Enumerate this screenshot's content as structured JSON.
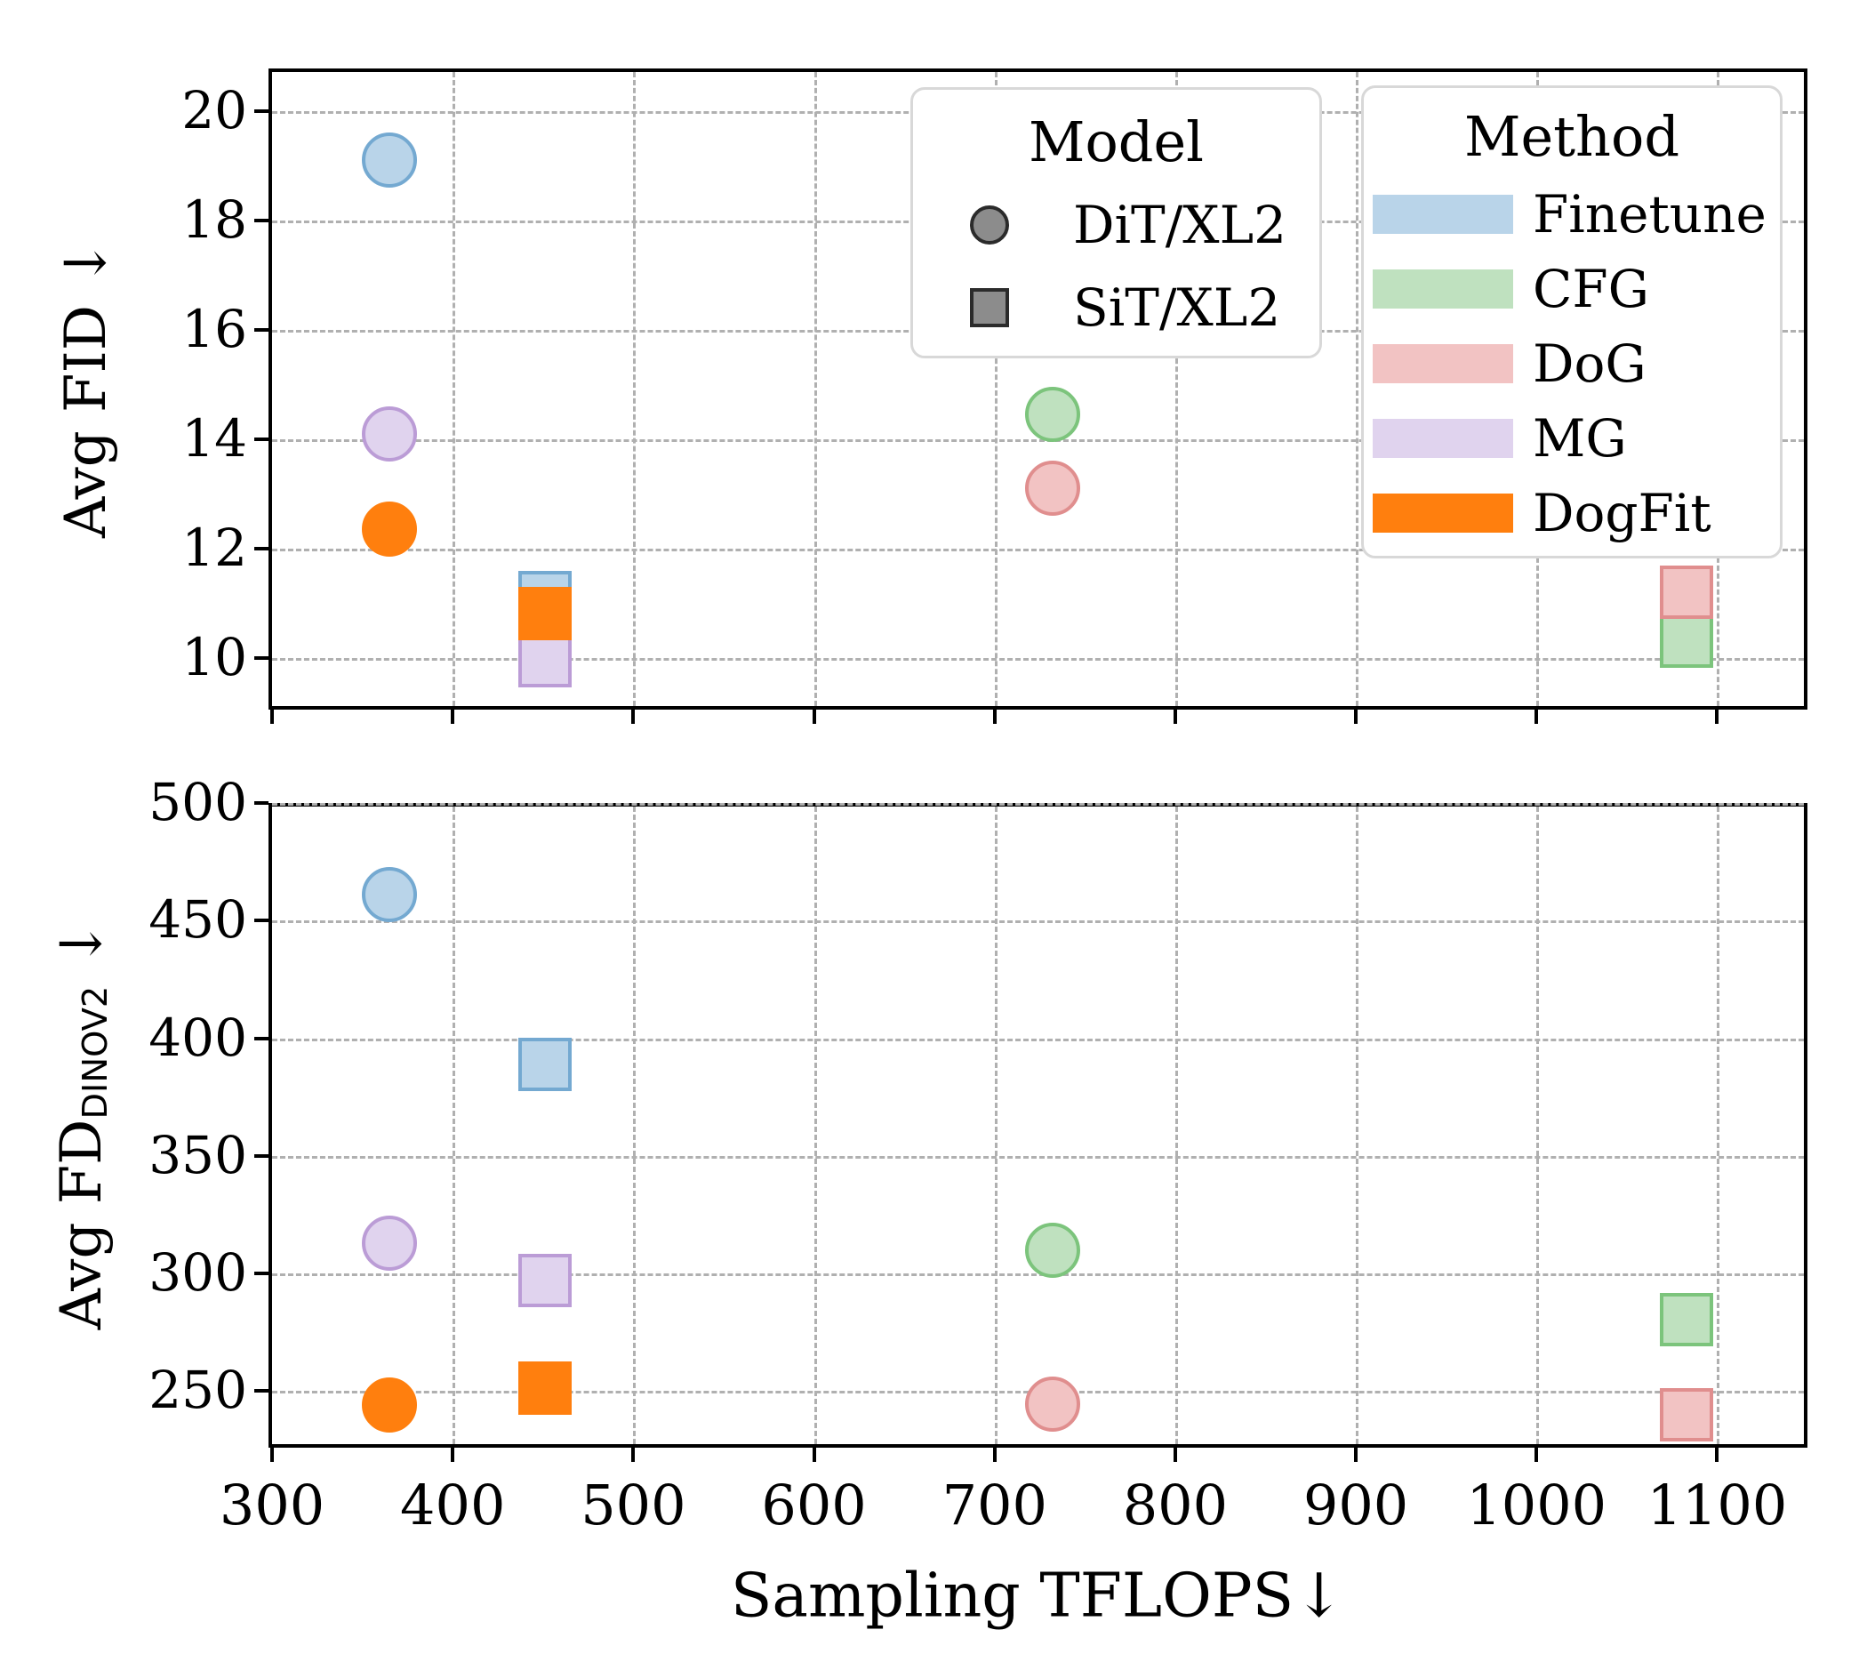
{
  "figure": {
    "background": "#ffffff"
  },
  "colors": {
    "grid": "#b0b0b0",
    "spine": "#000000",
    "legend_border": "#d8d8d8",
    "legend_marker_fill": "#8c8c8c",
    "legend_marker_edge": "#2b2b2b"
  },
  "methods": [
    {
      "name": "Finetune",
      "fill": "#b9d4e9",
      "edge": "#74a9d1"
    },
    {
      "name": "CFG",
      "fill": "#bfe1bf",
      "edge": "#7cc47c"
    },
    {
      "name": "DoG",
      "fill": "#f2c3c3",
      "edge": "#e08e8e"
    },
    {
      "name": "MG",
      "fill": "#e0d3ee",
      "edge": "#bb9cd6"
    },
    {
      "name": "DogFit",
      "fill": "#ff7f0e",
      "edge": "#ff7f0e"
    }
  ],
  "legend_model": {
    "title": "Model",
    "items": [
      {
        "marker": "circle",
        "label": "DiT/XL2"
      },
      {
        "marker": "square",
        "label": "SiT/XL2"
      }
    ]
  },
  "legend_method": {
    "title": "Method"
  },
  "xaxis": {
    "label": "Sampling TFLOPS",
    "arrow": "↓",
    "ticks": [
      300,
      400,
      500,
      600,
      700,
      800,
      900,
      1000,
      1100
    ]
  },
  "chart_data": [
    {
      "type": "scatter",
      "title": "",
      "ylabel_main": "Avg FID",
      "ylabel_sub": "",
      "ylabel_arrow": "↓",
      "xlabel": "Sampling TFLOPS",
      "xlim": [
        298,
        1150
      ],
      "ylim": [
        9.05,
        20.78
      ],
      "yticks": [
        20,
        18,
        16,
        14,
        12,
        10
      ],
      "xgridlines": [
        400,
        500,
        600,
        700,
        800,
        900,
        1000,
        1100
      ],
      "grid": true,
      "legend_position": "upper center",
      "series": [
        {
          "method": "Finetune",
          "points": [
            {
              "model": "DiT/XL2",
              "marker": "circle",
              "x": 365,
              "y": 19.1
            },
            {
              "model": "SiT/XL2",
              "marker": "square",
              "x": 451,
              "y": 11.1
            }
          ]
        },
        {
          "method": "CFG",
          "points": [
            {
              "model": "DiT/XL2",
              "marker": "circle",
              "x": 732,
              "y": 14.45
            },
            {
              "model": "SiT/XL2",
              "marker": "square",
              "x": 1083,
              "y": 10.3
            }
          ]
        },
        {
          "method": "DoG",
          "points": [
            {
              "model": "DiT/XL2",
              "marker": "circle",
              "x": 732,
              "y": 13.1
            },
            {
              "model": "SiT/XL2",
              "marker": "square",
              "x": 1083,
              "y": 11.2
            }
          ]
        },
        {
          "method": "MG",
          "points": [
            {
              "model": "DiT/XL2",
              "marker": "circle",
              "x": 365,
              "y": 14.1
            },
            {
              "model": "SiT/XL2",
              "marker": "square",
              "x": 451,
              "y": 9.95
            }
          ]
        },
        {
          "method": "DogFit",
          "points": [
            {
              "model": "DiT/XL2",
              "marker": "circle",
              "x": 365,
              "y": 12.35
            },
            {
              "model": "SiT/XL2",
              "marker": "square",
              "x": 451,
              "y": 10.8
            }
          ]
        }
      ]
    },
    {
      "type": "scatter",
      "title": "",
      "ylabel_main": "Avg FD",
      "ylabel_sub": "DINOV2",
      "ylabel_arrow": "↓",
      "xlabel": "Sampling TFLOPS",
      "xlim": [
        298,
        1150
      ],
      "ylim": [
        226,
        500
      ],
      "yticks": [
        500,
        450,
        400,
        350,
        300,
        250
      ],
      "xgridlines": [
        400,
        500,
        600,
        700,
        800,
        900,
        1000,
        1100
      ],
      "grid": true,
      "series": [
        {
          "method": "Finetune",
          "points": [
            {
              "model": "DiT/XL2",
              "marker": "circle",
              "x": 365,
              "y": 461
            },
            {
              "model": "SiT/XL2",
              "marker": "square",
              "x": 451,
              "y": 389
            }
          ]
        },
        {
          "method": "CFG",
          "points": [
            {
              "model": "DiT/XL2",
              "marker": "circle",
              "x": 732,
              "y": 310
            },
            {
              "model": "SiT/XL2",
              "marker": "square",
              "x": 1083,
              "y": 280.5
            }
          ]
        },
        {
          "method": "DoG",
          "points": [
            {
              "model": "DiT/XL2",
              "marker": "circle",
              "x": 732,
              "y": 244.5
            },
            {
              "model": "SiT/XL2",
              "marker": "square",
              "x": 1083,
              "y": 240
            }
          ]
        },
        {
          "method": "MG",
          "points": [
            {
              "model": "DiT/XL2",
              "marker": "circle",
              "x": 365,
              "y": 313
            },
            {
              "model": "SiT/XL2",
              "marker": "square",
              "x": 451,
              "y": 297
            }
          ]
        },
        {
          "method": "DogFit",
          "points": [
            {
              "model": "DiT/XL2",
              "marker": "circle",
              "x": 365,
              "y": 244
            },
            {
              "model": "SiT/XL2",
              "marker": "square",
              "x": 451,
              "y": 251.5
            }
          ]
        }
      ]
    }
  ]
}
